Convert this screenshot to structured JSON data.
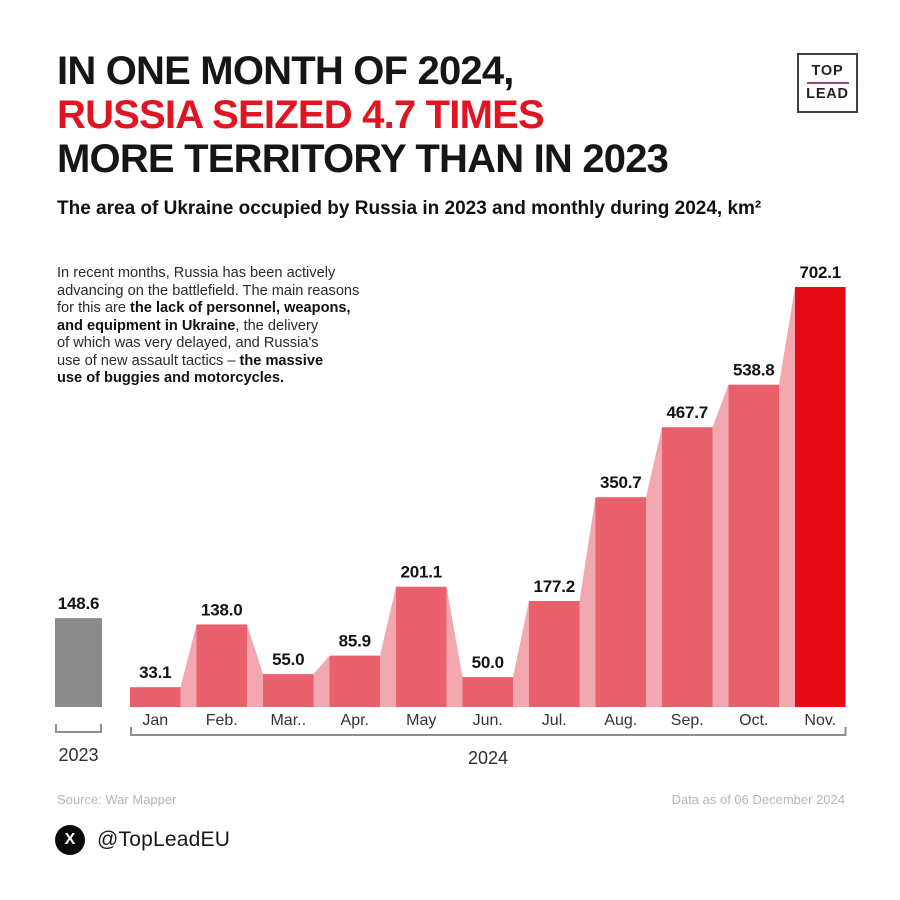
{
  "colors": {
    "accent_red": "#e11422",
    "bar_red": "#e7606b",
    "connector_pink": "#f3a7af",
    "highlight_red": "#e50a15",
    "gray_bar": "#8b8b8b",
    "bracket_gray": "#8f8f8f",
    "text_dark": "#161616",
    "footer_gray": "#b6b6b6",
    "logo_divider_purple": "#8d4586"
  },
  "header": {
    "title_lines": [
      {
        "text": "IN ONE MONTH OF 2024,",
        "emphasis": "dark"
      },
      {
        "text": "RUSSIA SEIZED 4.7 TIMES",
        "emphasis": "red"
      },
      {
        "text": "MORE TERRITORY THAN IN 2023",
        "emphasis": "dark"
      }
    ],
    "subtitle": "The area of Ukraine occupied by Russia in 2023 and monthly during 2024, km²",
    "logo": {
      "top": "TOP",
      "bottom": "LEAD"
    }
  },
  "intro": {
    "lines": [
      [
        {
          "t": "In recent months, Russia has been actively",
          "b": false
        }
      ],
      [
        {
          "t": "advancing on the battlefield. The main reasons",
          "b": false
        }
      ],
      [
        {
          "t": "for this are ",
          "b": false
        },
        {
          "t": "the lack of personnel, weapons,",
          "b": true
        }
      ],
      [
        {
          "t": "and equipment in Ukraine",
          "b": true
        },
        {
          "t": ", the delivery",
          "b": false
        }
      ],
      [
        {
          "t": "of which was very delayed, and Russia's",
          "b": false
        }
      ],
      [
        {
          "t": "use of new assault tactics – ",
          "b": false
        },
        {
          "t": "the massive",
          "b": true
        }
      ],
      [
        {
          "t": "use of buggies and motorcycles.",
          "b": true
        }
      ]
    ]
  },
  "chart_data": {
    "type": "bar",
    "title": "The area of Ukraine occupied by Russia in 2023 and monthly during 2024, km²",
    "unit": "km²",
    "ylim": [
      0,
      720
    ],
    "grid": false,
    "legend": "none",
    "value_label_decimals": 1,
    "groups": [
      {
        "label": "2023",
        "categories": [
          "2023"
        ],
        "values": [
          148.6
        ],
        "color": "#8b8b8b"
      },
      {
        "label": "2024",
        "categories": [
          "Jan",
          "Feb.",
          "Mar..",
          "Apr.",
          "May",
          "Jun.",
          "Jul.",
          "Aug.",
          "Sep.",
          "Oct.",
          "Nov."
        ],
        "values": [
          33.1,
          138.0,
          55.0,
          85.9,
          201.1,
          50.0,
          177.2,
          350.7,
          467.7,
          538.8,
          702.1
        ],
        "bar_color": "#e7606b",
        "connector_color": "#f3a7af",
        "highlight": {
          "index": 10,
          "color": "#e50a15"
        }
      }
    ]
  },
  "footer": {
    "source": "Source: War Mapper",
    "data_as_of": "Data as of 06 December 2024",
    "x_icon": "x-logo",
    "x_glyph": "X",
    "handle": "@TopLeadEU"
  }
}
